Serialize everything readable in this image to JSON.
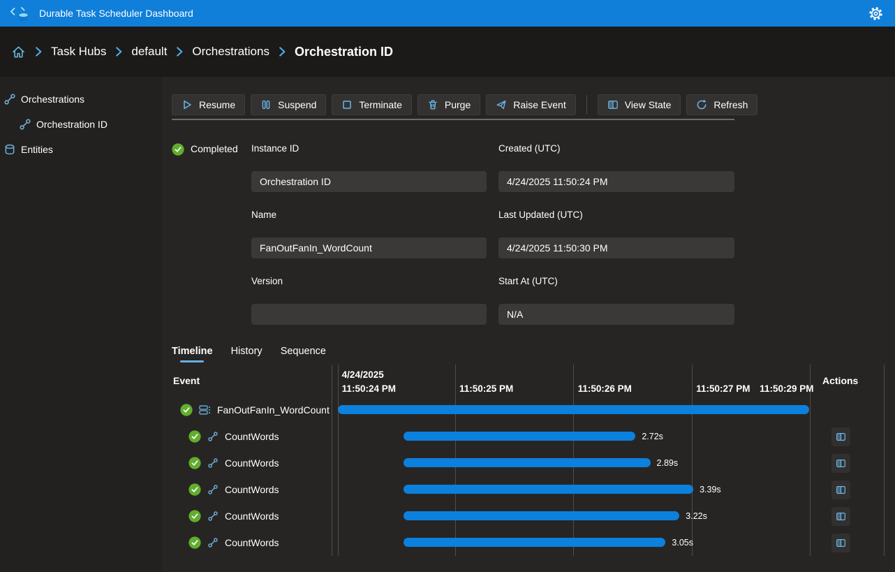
{
  "app": {
    "title": "Durable Task Scheduler Dashboard",
    "logo_icon": "lightning-database-logo",
    "settings_icon": "gear-icon"
  },
  "breadcrumb": {
    "home_icon": "home-icon",
    "items": [
      "Task Hubs",
      "default",
      "Orchestrations"
    ],
    "current": "Orchestration ID"
  },
  "sidebar": {
    "items": [
      {
        "label": "Orchestrations",
        "icon": "link-icon"
      },
      {
        "label": "Orchestration ID",
        "icon": "link-icon"
      },
      {
        "label": "Entities",
        "icon": "database-icon"
      }
    ]
  },
  "toolbar": {
    "buttons": [
      {
        "label": "Resume",
        "icon": "play-icon"
      },
      {
        "label": "Suspend",
        "icon": "pause-icon"
      },
      {
        "label": "Terminate",
        "icon": "stop-icon"
      },
      {
        "label": "Purge",
        "icon": "trash-icon"
      },
      {
        "label": "Raise Event",
        "icon": "send-icon"
      },
      {
        "label": "View State",
        "icon": "view-state-icon"
      },
      {
        "label": "Refresh",
        "icon": "refresh-icon"
      }
    ]
  },
  "details": {
    "status": "Completed",
    "status_icon": "check-circle-icon",
    "fields": [
      {
        "label": "Instance ID",
        "value": "Orchestration ID"
      },
      {
        "label": "Created (UTC)",
        "value": "4/24/2025 11:50:24 PM"
      },
      {
        "label": "Name",
        "value": "FanOutFanIn_WordCount"
      },
      {
        "label": "Last Updated (UTC)",
        "value": "4/24/2025 11:50:30 PM"
      },
      {
        "label": "Version",
        "value": ""
      },
      {
        "label": "Start At (UTC)",
        "value": "N/A"
      }
    ]
  },
  "tabs": [
    {
      "label": "Timeline",
      "active": true
    },
    {
      "label": "History",
      "active": false
    },
    {
      "label": "Sequence",
      "active": false
    }
  ],
  "timeline": {
    "event_header": "Event",
    "actions_header": "Actions",
    "action_icon": "view-state-icon",
    "bar_color": "#0c80dd",
    "axis": {
      "date": "4/24/2025",
      "date_pos_pct": 2.0,
      "ticks": [
        {
          "label": "11:50:24 PM",
          "pos_pct": 2.0
        },
        {
          "label": "11:50:25 PM",
          "pos_pct": 26.6
        },
        {
          "label": "11:50:26 PM",
          "pos_pct": 51.4
        },
        {
          "label": "11:50:27 PM",
          "pos_pct": 76.2
        },
        {
          "label": "11:50:29 PM",
          "pos_pct": 89.5
        }
      ],
      "gridlines_pct": [
        1.2,
        25.7,
        50.5,
        75.3
      ]
    },
    "rows": [
      {
        "name": "FanOutFanIn_WordCount",
        "icon": "orchestration-icon",
        "status": "completed",
        "duration": "",
        "bar": {
          "start_pct": 1.2,
          "end_pct": 99.8
        },
        "has_action": false
      },
      {
        "name": "CountWords",
        "icon": "link-icon",
        "status": "completed",
        "duration": "2.72s",
        "bar": {
          "start_pct": 14.9,
          "end_pct": 63.5
        },
        "has_action": true
      },
      {
        "name": "CountWords",
        "icon": "link-icon",
        "status": "completed",
        "duration": "2.89s",
        "bar": {
          "start_pct": 14.9,
          "end_pct": 66.6
        },
        "has_action": true
      },
      {
        "name": "CountWords",
        "icon": "link-icon",
        "status": "completed",
        "duration": "3.39s",
        "bar": {
          "start_pct": 14.9,
          "end_pct": 75.6
        },
        "has_action": true
      },
      {
        "name": "CountWords",
        "icon": "link-icon",
        "status": "completed",
        "duration": "3.22s",
        "bar": {
          "start_pct": 14.9,
          "end_pct": 72.7
        },
        "has_action": true
      },
      {
        "name": "CountWords",
        "icon": "link-icon",
        "status": "completed",
        "duration": "3.05s",
        "bar": {
          "start_pct": 14.9,
          "end_pct": 69.8
        },
        "has_action": true
      }
    ]
  },
  "colors": {
    "topbar": "#0f7fd9",
    "accent": "#6cb8ea",
    "bar_blue": "#0c80dd",
    "success_green": "#61ae2d",
    "breadcrumb_bg": "#1b1a19",
    "sidebar_bg": "#232120",
    "content_bg": "#272524",
    "input_bg": "#3a3938"
  }
}
